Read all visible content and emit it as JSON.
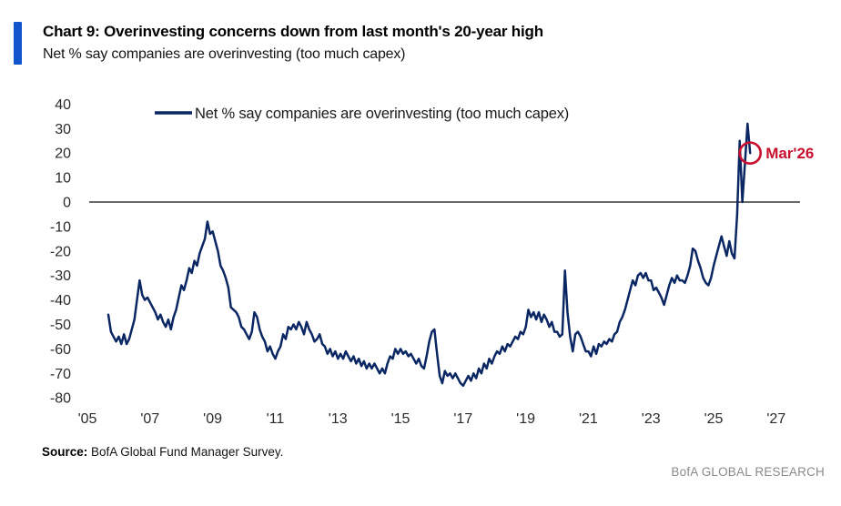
{
  "header": {
    "title": "Chart 9: Overinvesting concerns down from last month's 20-year high",
    "subtitle": "Net % say companies are overinvesting (too much capex)",
    "accent_color": "#1155CC"
  },
  "footer": {
    "source_label": "Source:",
    "source_text": " BofA Global Fund Manager Survey.",
    "brand": "BofA GLOBAL RESEARCH"
  },
  "chart_data": {
    "type": "line",
    "legend": [
      {
        "label": "Net % say companies are overinvesting (too much capex)",
        "color": "#0A2663"
      }
    ],
    "line_color": "#0A2663",
    "axis_color": "#555555",
    "ylim": [
      -80,
      40
    ],
    "yticks": [
      40,
      30,
      20,
      10,
      0,
      -10,
      -20,
      -30,
      -40,
      -50,
      -60,
      -70,
      -80
    ],
    "xticks": [
      "'05",
      "'07",
      "'09",
      "'11",
      "'13",
      "'15",
      "'17",
      "'19",
      "'21",
      "'23",
      "'25",
      "'27"
    ],
    "grid": false,
    "legend_position": "top-center",
    "frequency": "monthly",
    "start_month": "2005-09",
    "end_month": "2026-03",
    "values": [
      -46,
      -53,
      -55,
      -57,
      -55,
      -58,
      -54,
      -58,
      -56,
      -52,
      -48,
      -40,
      -32,
      -38,
      -40,
      -39,
      -41,
      -43,
      -45,
      -48,
      -46,
      -49,
      -51,
      -48,
      -52,
      -47,
      -44,
      -39,
      -34,
      -36,
      -32,
      -27,
      -29,
      -24,
      -26,
      -21,
      -18,
      -15,
      -8,
      -13,
      -12,
      -16,
      -20,
      -26,
      -28,
      -31,
      -35,
      -43,
      -44,
      -45,
      -47,
      -51,
      -52,
      -54,
      -56,
      -53,
      -45,
      -47,
      -52,
      -55,
      -57,
      -61,
      -59,
      -62,
      -64,
      -61,
      -59,
      -54,
      -56,
      -51,
      -52,
      -50,
      -52,
      -49,
      -51,
      -54,
      -49,
      -52,
      -54,
      -57,
      -56,
      -54,
      -58,
      -59,
      -62,
      -60,
      -63,
      -61,
      -64,
      -62,
      -64,
      -61,
      -63,
      -65,
      -63,
      -66,
      -64,
      -67,
      -65,
      -68,
      -66,
      -68,
      -66,
      -68,
      -70,
      -68,
      -70,
      -66,
      -63,
      -64,
      -60,
      -62,
      -60,
      -62,
      -61,
      -63,
      -62,
      -64,
      -66,
      -64,
      -67,
      -68,
      -63,
      -57,
      -53,
      -52,
      -62,
      -71,
      -74,
      -69,
      -71,
      -70,
      -72,
      -70,
      -72,
      -74,
      -75,
      -73,
      -71,
      -73,
      -70,
      -72,
      -68,
      -70,
      -66,
      -68,
      -64,
      -66,
      -63,
      -61,
      -62,
      -59,
      -61,
      -58,
      -59,
      -57,
      -55,
      -56,
      -53,
      -54,
      -51,
      -44,
      -47,
      -45,
      -48,
      -45,
      -49,
      -46,
      -48,
      -51,
      -49,
      -53,
      -53,
      -55,
      -54,
      -28,
      -45,
      -55,
      -61,
      -54,
      -53,
      -55,
      -58,
      -61,
      -61,
      -63,
      -59,
      -62,
      -58,
      -59,
      -57,
      -58,
      -56,
      -57,
      -54,
      -53,
      -49,
      -47,
      -44,
      -40,
      -36,
      -32,
      -34,
      -30,
      -29,
      -31,
      -29,
      -32,
      -32,
      -36,
      -35,
      -37,
      -39,
      -42,
      -38,
      -34,
      -31,
      -33,
      -30,
      -32,
      -32,
      -33,
      -30,
      -26,
      -19,
      -20,
      -24,
      -27,
      -31,
      -33,
      -34,
      -31,
      -26,
      -22,
      -18,
      -14,
      -18,
      -22,
      -16,
      -21,
      -23,
      -5,
      25,
      0,
      16,
      32,
      20
    ],
    "annotation": {
      "label": "Mar'26",
      "color": "#C8102E",
      "month": "2026-03",
      "value": 20
    }
  }
}
